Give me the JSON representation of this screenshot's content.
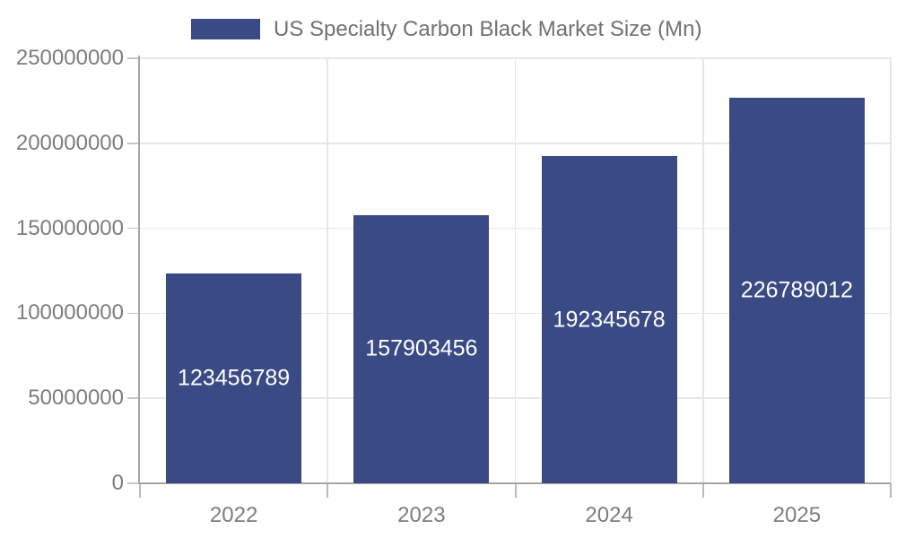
{
  "legend": {
    "label": "US Specialty Carbon Black Market Size (Mn)"
  },
  "chart_data": {
    "type": "bar",
    "title": "US Specialty Carbon Black Market Size (Mn)",
    "categories": [
      "2022",
      "2023",
      "2024",
      "2025"
    ],
    "values": [
      123456789,
      157903456,
      192345678,
      226789012
    ],
    "value_labels": [
      "123456789",
      "157903456",
      "192345678",
      "226789012"
    ],
    "xlabel": "",
    "ylabel": "",
    "ylim": [
      0,
      250000000
    ],
    "yticks": [
      0,
      50000000,
      100000000,
      150000000,
      200000000,
      250000000
    ],
    "ytick_labels": [
      "0",
      "50000000",
      "100000000",
      "150000000",
      "200000000",
      "250000000"
    ],
    "grid": true,
    "legend_position": "top-center",
    "value_label_position": "inside-center"
  },
  "colors": {
    "bar": "#3a4a84",
    "grid": "#e7e7ea",
    "axis": "#a6a6a6",
    "y_tick": "#c6c6c6",
    "x_tick": "#b5bac4",
    "tick_text": "#7d7d7d",
    "legend_text": "#717171",
    "value_text": "#ffffff",
    "background": "#ffffff"
  }
}
